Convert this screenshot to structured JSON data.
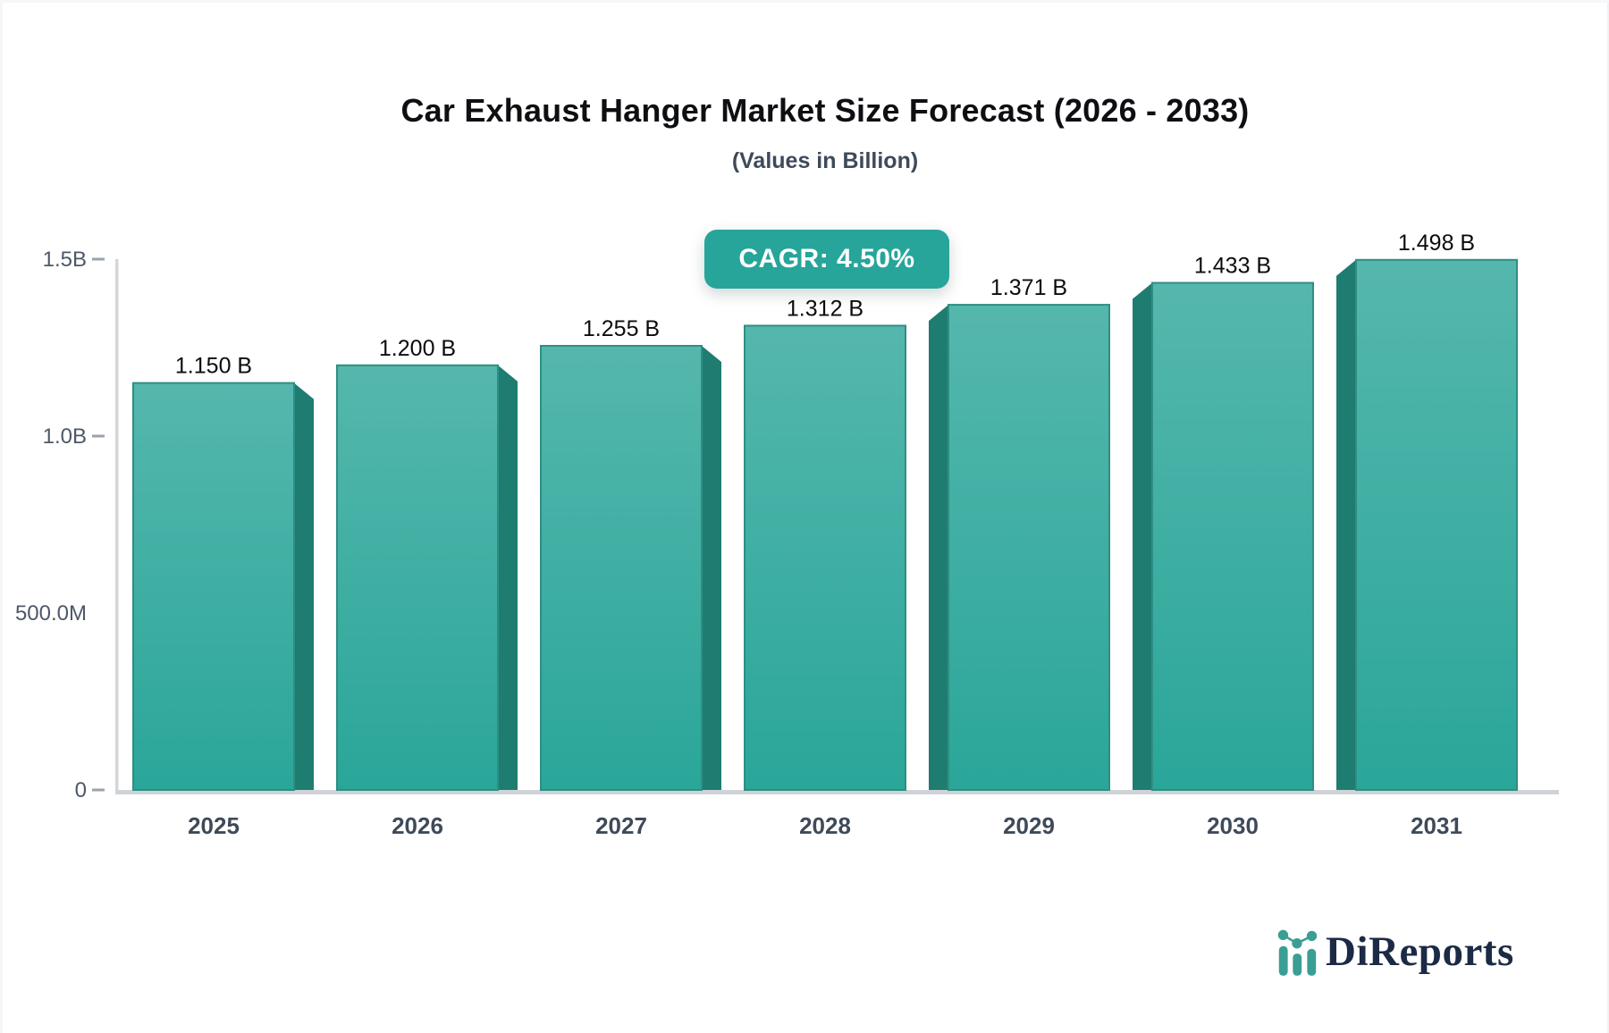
{
  "header": {
    "title": "Car Exhaust Hanger Market Size Forecast (2026 - 2033)",
    "subtitle": "(Values in Billion)"
  },
  "cagr_badge": {
    "label": "CAGR: 4.50%",
    "bg": "#27a59b"
  },
  "chart_data": {
    "type": "bar",
    "title": "Car Exhaust Hanger Market Size Forecast (2026 - 2033)",
    "subtitle": "(Values in Billion)",
    "cagr": "4.50%",
    "categories": [
      "2025",
      "2026",
      "2027",
      "2028",
      "2029",
      "2030",
      "2031"
    ],
    "values": [
      1.15,
      1.2,
      1.255,
      1.312,
      1.371,
      1.433,
      1.498
    ],
    "value_labels": [
      "1.150 B",
      "1.200 B",
      "1.255 B",
      "1.312 B",
      "1.371 B",
      "1.433 B",
      "1.498 B"
    ],
    "ylim": [
      0,
      1.5
    ],
    "y_ticks": [
      {
        "label": "1.5B",
        "value": 1.5,
        "dash": true
      },
      {
        "label": "1.0B",
        "value": 1.0,
        "dash": true
      },
      {
        "label": "500.0M",
        "value": 0.5,
        "dash": false
      },
      {
        "label": "0",
        "value": 0,
        "dash": true
      }
    ],
    "legend": "none",
    "grid": "off",
    "colors": {
      "bar_top": "#55b7ad",
      "bar_bottom": "#2aa699",
      "bar_side": "#1f7c71",
      "bar_stroke": "#2f8e83",
      "axis_line": "#d3d6da",
      "baseline": "#cfd2d6",
      "tick_dash": "#9aa3ad",
      "y_label": "#4d5868",
      "x_label": "#3f4a59",
      "value_label": "#0b0c0e"
    }
  },
  "logo": {
    "text": "DiReports",
    "icon": "mini-bar-chart-icon",
    "text_color": "#1b2a45",
    "icon_color": "#3b9e95"
  }
}
